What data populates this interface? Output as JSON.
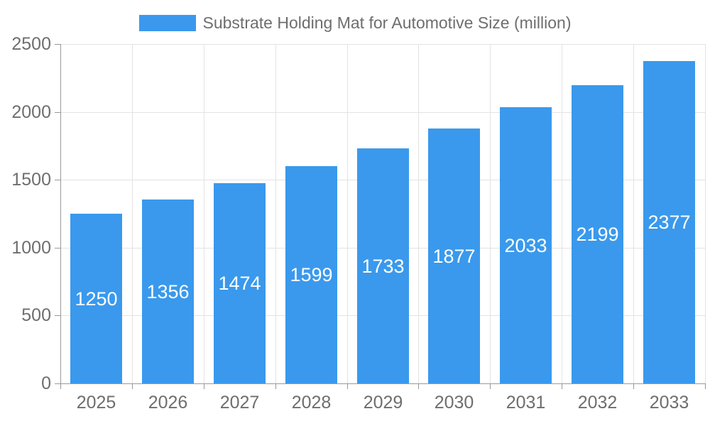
{
  "chart_data": {
    "type": "bar",
    "title": "Substrate Holding Mat for Automotive Size (million)",
    "categories": [
      "2025",
      "2026",
      "2027",
      "2028",
      "2029",
      "2030",
      "2031",
      "2032",
      "2033"
    ],
    "values": [
      1250,
      1356,
      1474,
      1599,
      1733,
      1877,
      2033,
      2199,
      2377
    ],
    "series": [
      {
        "name": "Substrate Holding Mat for Automotive Size (million)",
        "values": [
          1250,
          1356,
          1474,
          1599,
          1733,
          1877,
          2033,
          2199,
          2377
        ]
      }
    ],
    "xlabel": "",
    "ylabel": "",
    "ylim": [
      0,
      2500
    ],
    "yticks": [
      0,
      500,
      1000,
      1500,
      2000,
      2500
    ],
    "grid": true,
    "bar_value_labels": "inside-center",
    "legend_position": "top-center",
    "colors": {
      "bar": "#3a99ec",
      "bar_label": "#ffffff",
      "axis_text": "#6e6e6e",
      "title_text": "#6e6e6e",
      "axis_line": "#999999",
      "gridline": "#e3e3e3",
      "background": "#ffffff"
    }
  }
}
